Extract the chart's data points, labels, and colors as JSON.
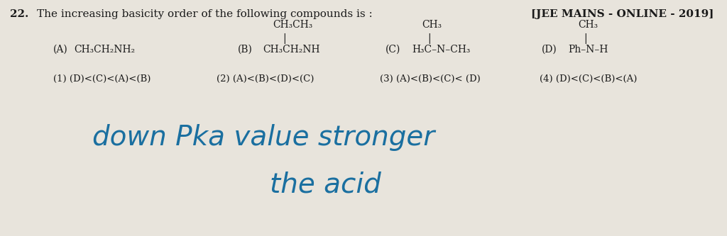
{
  "background_color": "#e8e4dc",
  "question_number": "22.",
  "question_text": "The increasing basicity order of the following compounds is :",
  "source_text": "[JEE MAINS - ONLINE - 2019]",
  "options": [
    "(1) (D)<(C)<(A)<(B)",
    "(2) (A)<(B)<(D)<(C)",
    "(3) (A)<(B)<(C)< (D)",
    "(4) (D)<(C)<(B)<(A)"
  ],
  "handwritten_line1": "down Pka value stronger",
  "handwritten_line2": "the acid",
  "handwritten_color": "#1a6fa0",
  "text_color": "#1a1a1a",
  "fs_question": 11,
  "fs_formula": 10,
  "fs_options": 9.5,
  "fs_handwritten": 28,
  "A_label": "(A)",
  "A_formula": "CH₃CH₂NH₂",
  "B_label": "(B)",
  "B_top": "CH₃CH₃",
  "B_formula": "CH₃CH₂NH",
  "C_label": "(C)",
  "C_top": "CH₃",
  "C_formula": "H₃C–N–CH₃",
  "D_label": "(D)",
  "D_top": "CH₃",
  "D_formula": "Ph–N–H"
}
